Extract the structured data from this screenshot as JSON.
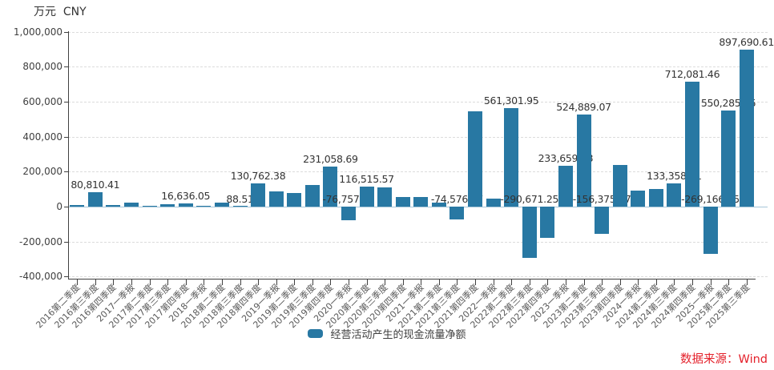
{
  "unit_label": "万元  CNY",
  "legend": {
    "label": "经营活动产生的现金流量净额"
  },
  "source": {
    "label": "数据来源：Wind"
  },
  "colors": {
    "bar": "#2878a3",
    "grid": "#dcdcdc",
    "zero_line": "#a7c6d9",
    "axis": "#404040",
    "y_tick_label": "#404040",
    "x_tick_label": "#595959",
    "value_label": "#333333",
    "source_text": "#e4212b",
    "background": "#ffffff"
  },
  "chart_data": {
    "type": "bar",
    "title": "",
    "ylabel": "万元 CNY",
    "xlabel": "",
    "ylim": [
      -400000,
      1000000
    ],
    "grid": true,
    "legend_position": "bottom",
    "legend_entries": [
      "经营活动产生的现金流量净额"
    ],
    "ytick_values": [
      1000000,
      800000,
      600000,
      400000,
      200000,
      0,
      -200000,
      -400000
    ],
    "ytick_labels": [
      "1,000,000",
      "800,000",
      "600,000",
      "400,000",
      "200,000",
      "0",
      "-200,000",
      "-400,000"
    ],
    "categories": [
      "2016第二季度",
      "2016第三季度",
      "2016第四季度",
      "2017一季报",
      "2017第二季度",
      "2017第三季度",
      "2017第四季度",
      "2018一季报",
      "2018第二季度",
      "2018第三季度",
      "2018第四季度",
      "2019一季报",
      "2019第二季度",
      "2019第三季度",
      "2019第四季度",
      "2020一季报",
      "2020第二季度",
      "2020第三季度",
      "2020第四季度",
      "2021一季报",
      "2021第二季度",
      "2021第三季度",
      "2021第四季度",
      "2022一季报",
      "2022第二季度",
      "2022第三季度",
      "2022第四季度",
      "2023一季报",
      "2023第二季度",
      "2023第三季度",
      "2023第四季度",
      "2024一季报",
      "2024第二季度",
      "2024第三季度",
      "2024第四季度",
      "2025一季报",
      "2025第二季度",
      "2025第三季度"
    ],
    "values": [
      9000,
      80810.41,
      10000,
      25000,
      6000,
      15000,
      16636.05,
      5000,
      24000,
      88.51,
      130762.38,
      86000,
      78000,
      123000,
      231058.69,
      -76757.39,
      116515.57,
      112000,
      56000,
      54000,
      24000,
      -74576.97,
      545000,
      44000,
      561301.95,
      -290671.25,
      -180000,
      233659.28,
      524889.07,
      -156375.27,
      237000,
      92000,
      100000,
      133358.31,
      712081.46,
      -269166.05,
      550285.65,
      897690.61
    ],
    "value_labels": [
      null,
      "80,810.41",
      null,
      null,
      null,
      null,
      "16,636.05",
      null,
      null,
      "88.51",
      "130,762.38",
      null,
      null,
      null,
      "231,058.69",
      "-76,757.39",
      "116,515.57",
      null,
      null,
      null,
      null,
      "-74,576.97",
      null,
      null,
      "561,301.95",
      "-290,671.25",
      null,
      "233,659.28",
      "524,889.07",
      "-156,375.27",
      null,
      null,
      null,
      "133,358.31",
      "712,081.46",
      "-269,166.05",
      "550,285.65",
      "897,690.61"
    ]
  }
}
